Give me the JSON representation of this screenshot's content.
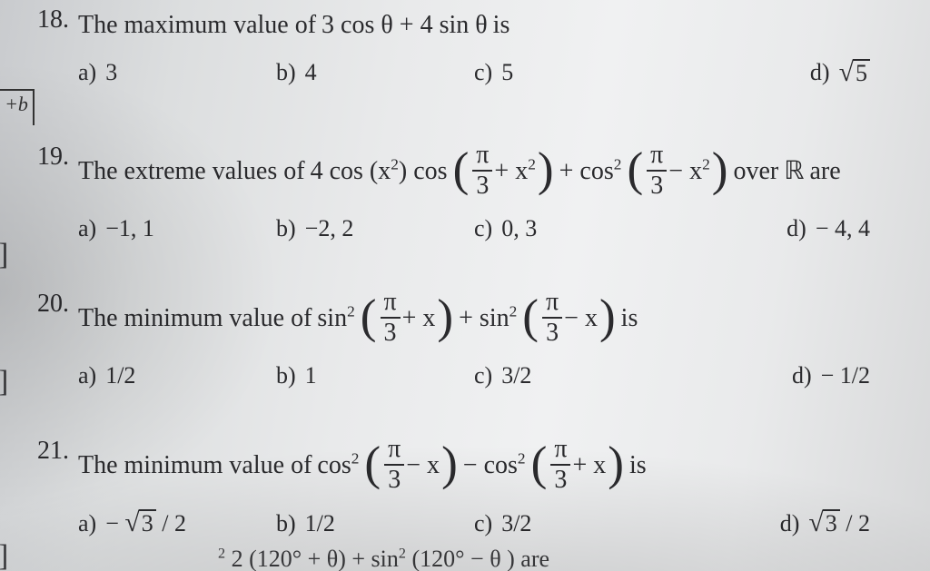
{
  "gutter": {
    "plus_b": "+b"
  },
  "q18": {
    "num": "18.",
    "stem_a": "The maximum value of",
    "expr_a": "3 cos θ + 4 sin θ",
    "stem_b": "is",
    "opts": {
      "a_lab": "a)",
      "a": "3",
      "b_lab": "b)",
      "b": "4",
      "c_lab": "c)",
      "c": "5",
      "d_lab": "d)",
      "d_rad": "5"
    }
  },
  "q19": {
    "num": "19.",
    "stem_a": "The extreme values of",
    "coef": "4 cos (x",
    "coef_sup": "2",
    "coef_tail": ") cos",
    "frac1_num": "π",
    "frac1_den": "3",
    "term1_tail": "+ x",
    "term1_sup": "2",
    "mid": "+ cos",
    "mid_sup": "2",
    "frac2_num": "π",
    "frac2_den": "3",
    "term2_tail": "− x",
    "term2_sup": "2",
    "stem_b": "over",
    "R": "ℝ",
    "stem_c": "are",
    "opts": {
      "a_lab": "a)",
      "a": "−1, 1",
      "b_lab": "b)",
      "b": "−2, 2",
      "c_lab": "c)",
      "c": "0, 3",
      "d_lab": "d)",
      "d": "− 4, 4"
    }
  },
  "q20": {
    "num": "20.",
    "stem_a": "The minimum value of",
    "fn1": "sin",
    "fn1_sup": "2",
    "frac1_num": "π",
    "frac1_den": "3",
    "term1_tail": "+ x",
    "mid": "+ sin",
    "mid_sup": "2",
    "frac2_num": "π",
    "frac2_den": "3",
    "term2_tail": "− x",
    "stem_b": "is",
    "opts": {
      "a_lab": "a)",
      "a": "1/2",
      "b_lab": "b)",
      "b": "1",
      "c_lab": "c)",
      "c": "3/2",
      "d_lab": "d)",
      "d": "− 1/2"
    }
  },
  "q21": {
    "num": "21.",
    "stem_a": "The minimum value of",
    "fn1": "cos",
    "fn1_sup": "2",
    "frac1_num": "π",
    "frac1_den": "3",
    "term1_tail": "− x",
    "mid": "− cos",
    "mid_sup": "2",
    "frac2_num": "π",
    "frac2_den": "3",
    "term2_tail": "+ x",
    "stem_b": "is",
    "opts": {
      "a_lab": "a)",
      "a_rad": "3",
      "a_tail": " / 2",
      "a_neg": "−",
      "b_lab": "b)",
      "b": "1/2",
      "c_lab": "c)",
      "c": "3/2",
      "d_lab": "d)",
      "d_rad": "3",
      "d_tail": " / 2"
    }
  },
  "cutoff": {
    "a": "2 (120° + θ) + sin",
    "a_sup": "2",
    "b": "(120° − θ ) are"
  }
}
